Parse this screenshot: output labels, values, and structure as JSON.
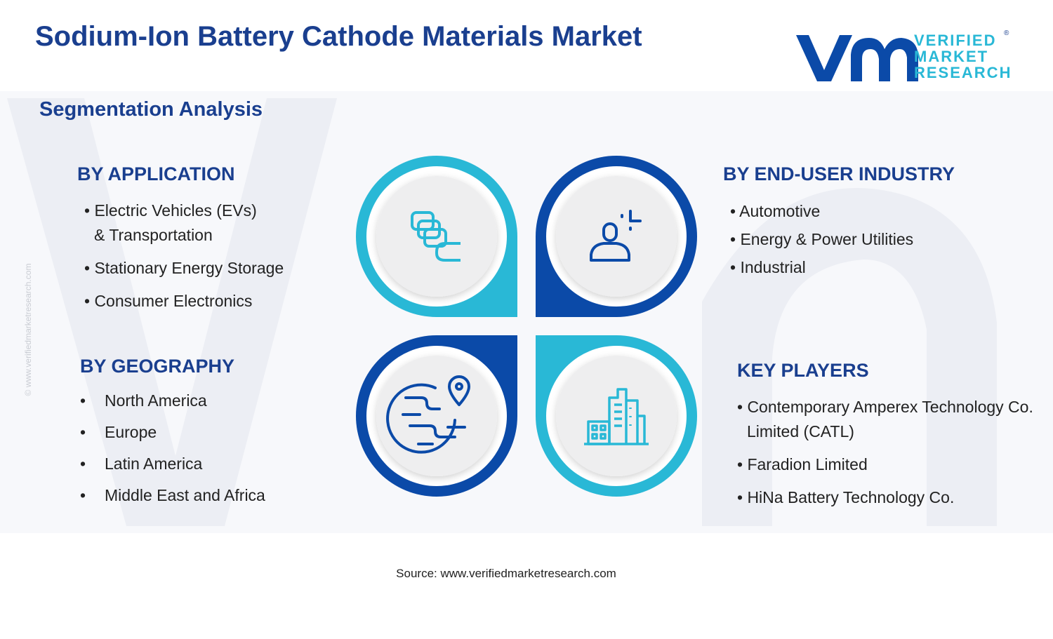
{
  "header": {
    "title": "Sodium-Ion Battery Cathode Materials Market",
    "subtitle": "Segmentation Analysis"
  },
  "logo": {
    "line1": "VERIFIED",
    "line2": "MARKET",
    "line3": "RESEARCH",
    "registered": "®"
  },
  "side_watermark": "© www.verifiedmarketresearch.com",
  "colors": {
    "navy": "#1a3f8f",
    "dark_blue": "#0b4aa8",
    "cyan": "#29b8d6",
    "circle_fill": "#eeeeef"
  },
  "segments": {
    "application": {
      "heading": "BY APPLICATION",
      "items": [
        {
          "line1": "• Electric Vehicles (EVs)",
          "line2": "& Transportation"
        },
        {
          "line1": "• Stationary Energy Storage"
        },
        {
          "line1": "• Consumer Electronics"
        }
      ],
      "icon": "battery-stack-icon"
    },
    "end_user": {
      "heading": "BY END-USER INDUSTRY",
      "items": [
        "• Automotive",
        "• Energy & Power Utilities",
        "• Industrial"
      ],
      "icon": "user-icon"
    },
    "geography": {
      "heading": "BY GEOGRAPHY",
      "bullet": "•",
      "items": [
        "North America",
        "Europe",
        "Latin America",
        "Middle East and Africa"
      ],
      "icon": "globe-pin-icon"
    },
    "key_players": {
      "heading": "KEY PLAYERS",
      "items": [
        {
          "line1": "• Contemporary Amperex Technology Co.",
          "line2": "Limited (CATL)"
        },
        {
          "line1": "• Faradion Limited"
        },
        {
          "line1": "• HiNa Battery Technology Co."
        }
      ],
      "icon": "buildings-icon"
    }
  },
  "footer": {
    "source": "Source: www.verifiedmarketresearch.com"
  }
}
